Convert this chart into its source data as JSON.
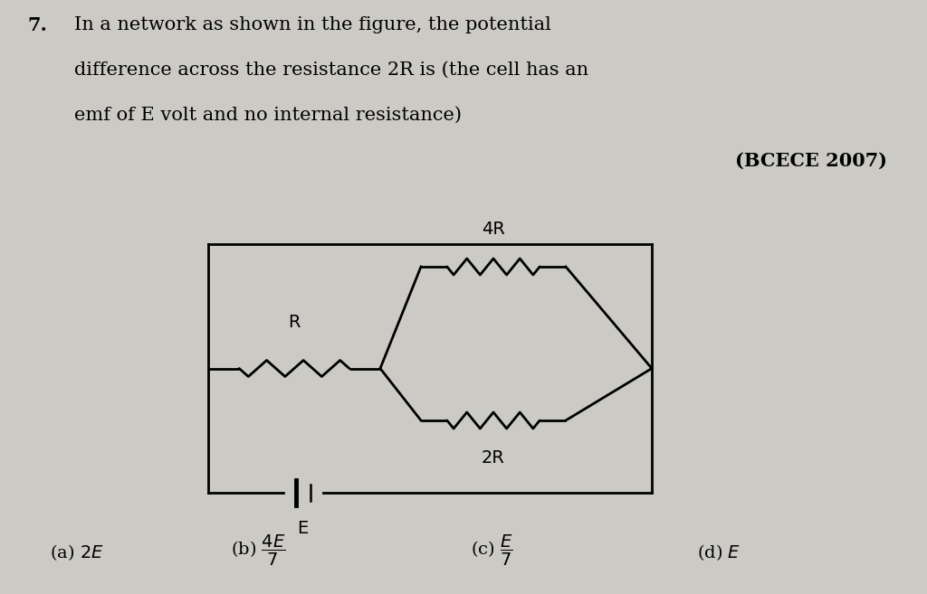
{
  "background_color": "#cccac4",
  "text_color": "#000000",
  "question_number": "7.",
  "question_text_line1": "In a network as shown in the figure, the potential",
  "question_text_line2": "difference across the resistance 2R is (the cell has an",
  "question_text_line3": "emf of E volt and no internal resistance)",
  "source_tag": "(BCECE 2007)",
  "circuit": {
    "R_label": "R",
    "4R_label": "4R",
    "2R_label": "2R",
    "E_label": "E"
  },
  "lw_wire": 2.0,
  "lw_resistor": 2.0,
  "font_size_text": 15,
  "font_size_label": 13,
  "font_size_answer": 14
}
